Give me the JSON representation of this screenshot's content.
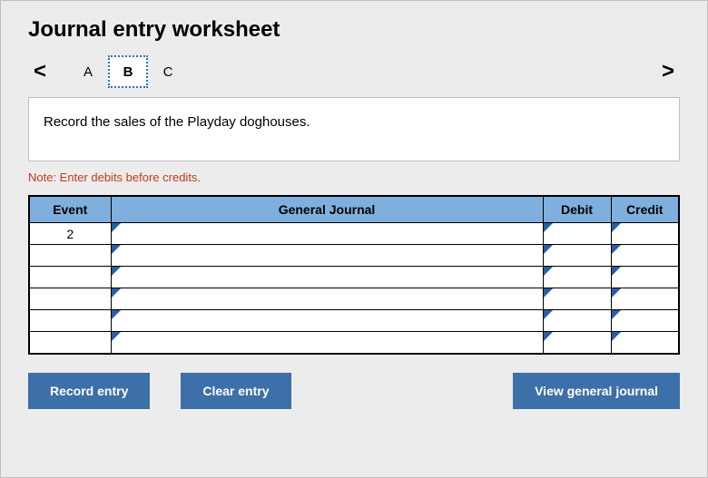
{
  "title": "Journal entry worksheet",
  "nav": {
    "prev": "<",
    "next": ">"
  },
  "tabs": [
    {
      "label": "A",
      "active": false
    },
    {
      "label": "B",
      "active": true
    },
    {
      "label": "C",
      "active": false
    }
  ],
  "instruction": "Record the sales of the Playday doghouses.",
  "note": "Note: Enter debits before credits.",
  "table": {
    "headers": {
      "event": "Event",
      "gj": "General Journal",
      "debit": "Debit",
      "credit": "Credit"
    },
    "header_bg": "#7fafdd",
    "border_color": "#000000",
    "rows": [
      {
        "event": "2",
        "gj": "",
        "debit": "",
        "credit": ""
      },
      {
        "event": "",
        "gj": "",
        "debit": "",
        "credit": ""
      },
      {
        "event": "",
        "gj": "",
        "debit": "",
        "credit": ""
      },
      {
        "event": "",
        "gj": "",
        "debit": "",
        "credit": ""
      },
      {
        "event": "",
        "gj": "",
        "debit": "",
        "credit": ""
      },
      {
        "event": "",
        "gj": "",
        "debit": "",
        "credit": ""
      }
    ]
  },
  "buttons": {
    "record": "Record entry",
    "clear": "Clear entry",
    "view": "View general journal"
  },
  "colors": {
    "panel_bg": "#ececec",
    "button_bg": "#3d6fa8",
    "note_color": "#c33a1f",
    "tab_border": "#2b6fbf"
  }
}
